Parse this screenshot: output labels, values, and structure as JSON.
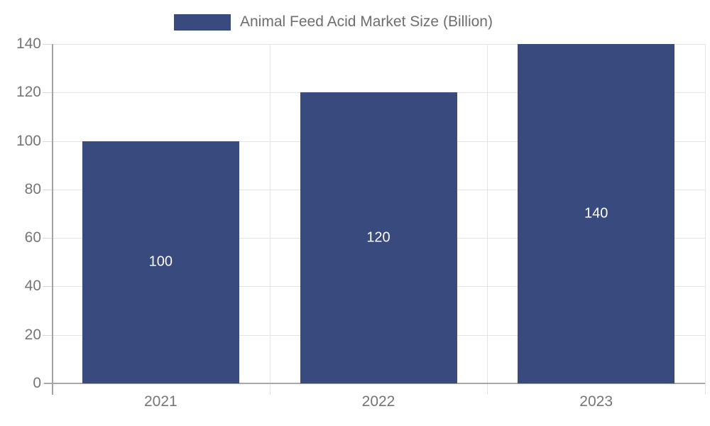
{
  "legend": {
    "label": "Animal Feed Acid Market Size (Billion)",
    "position": "top-center"
  },
  "chart_data": {
    "type": "bar",
    "title": "",
    "categories": [
      "2021",
      "2022",
      "2023"
    ],
    "values": [
      100,
      120,
      140
    ],
    "data_labels": [
      "100",
      "120",
      "140"
    ],
    "series_name": "Animal Feed Acid Market Size (Billion)",
    "xlabel": "",
    "ylabel": "",
    "ylim": [
      0,
      140
    ],
    "ytick_step": 20,
    "yticks": [
      "0",
      "20",
      "40",
      "60",
      "80",
      "100",
      "120",
      "140"
    ],
    "grid": true,
    "legend_position": "top-center",
    "colors": {
      "bar": "#384a7e",
      "bar_label": "#ffffff",
      "axis_text": "#757575",
      "legend_text": "#6e6e6e",
      "gridline": "#e4e4e4",
      "axis_line": "#a8a8a8"
    }
  }
}
